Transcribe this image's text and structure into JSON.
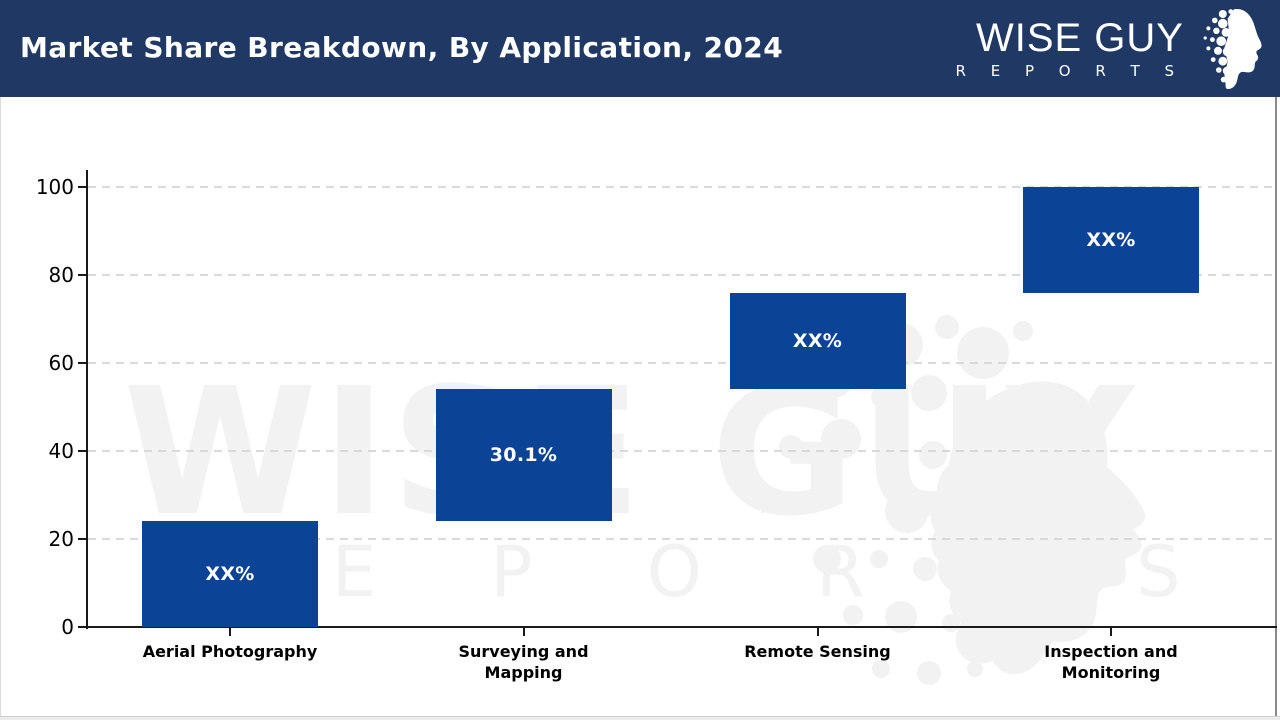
{
  "header": {
    "title": "Market Share Breakdown, By Application, 2024",
    "logo": {
      "line1": "WISE GUY",
      "line2": "R E P O R T S"
    }
  },
  "watermark": {
    "line1": "WISE GUY",
    "line2": "R E P O R T S"
  },
  "chart_data": {
    "type": "bar",
    "variant": "waterfall",
    "title": "Market Share Breakdown, By Application, 2024",
    "xlabel": "",
    "ylabel": "",
    "ylim": [
      0,
      100
    ],
    "yticks": [
      0,
      20,
      40,
      60,
      80,
      100
    ],
    "grid": "horizontal-dashed",
    "legend": "none",
    "categories": [
      "Aerial Photography",
      "Surveying and Mapping",
      "Remote Sensing",
      "Inspection and Monitoring"
    ],
    "category_display": [
      "Aerial Photography",
      "Surveying and\nMapping",
      "Remote Sensing",
      "Inspection and\nMonitoring"
    ],
    "segments": [
      {
        "category": "Aerial Photography",
        "start": 0,
        "end": 24,
        "value": 24,
        "label": "XX%"
      },
      {
        "category": "Surveying and Mapping",
        "start": 24,
        "end": 54.1,
        "value": 30.1,
        "label": "30.1%"
      },
      {
        "category": "Remote Sensing",
        "start": 54.1,
        "end": 76,
        "value": 21.9,
        "label": "XX%"
      },
      {
        "category": "Inspection and Monitoring",
        "start": 76,
        "end": 100,
        "value": 24,
        "label": "XX%"
      }
    ]
  },
  "colors": {
    "header_bg": "#1f3864",
    "header_text": "#ffffff",
    "bar": "#0b4397",
    "bar_label": "#ffffff",
    "grid": "#d9d9d9",
    "axis": "#1a1a1a",
    "watermark": "#f2f2f2"
  }
}
